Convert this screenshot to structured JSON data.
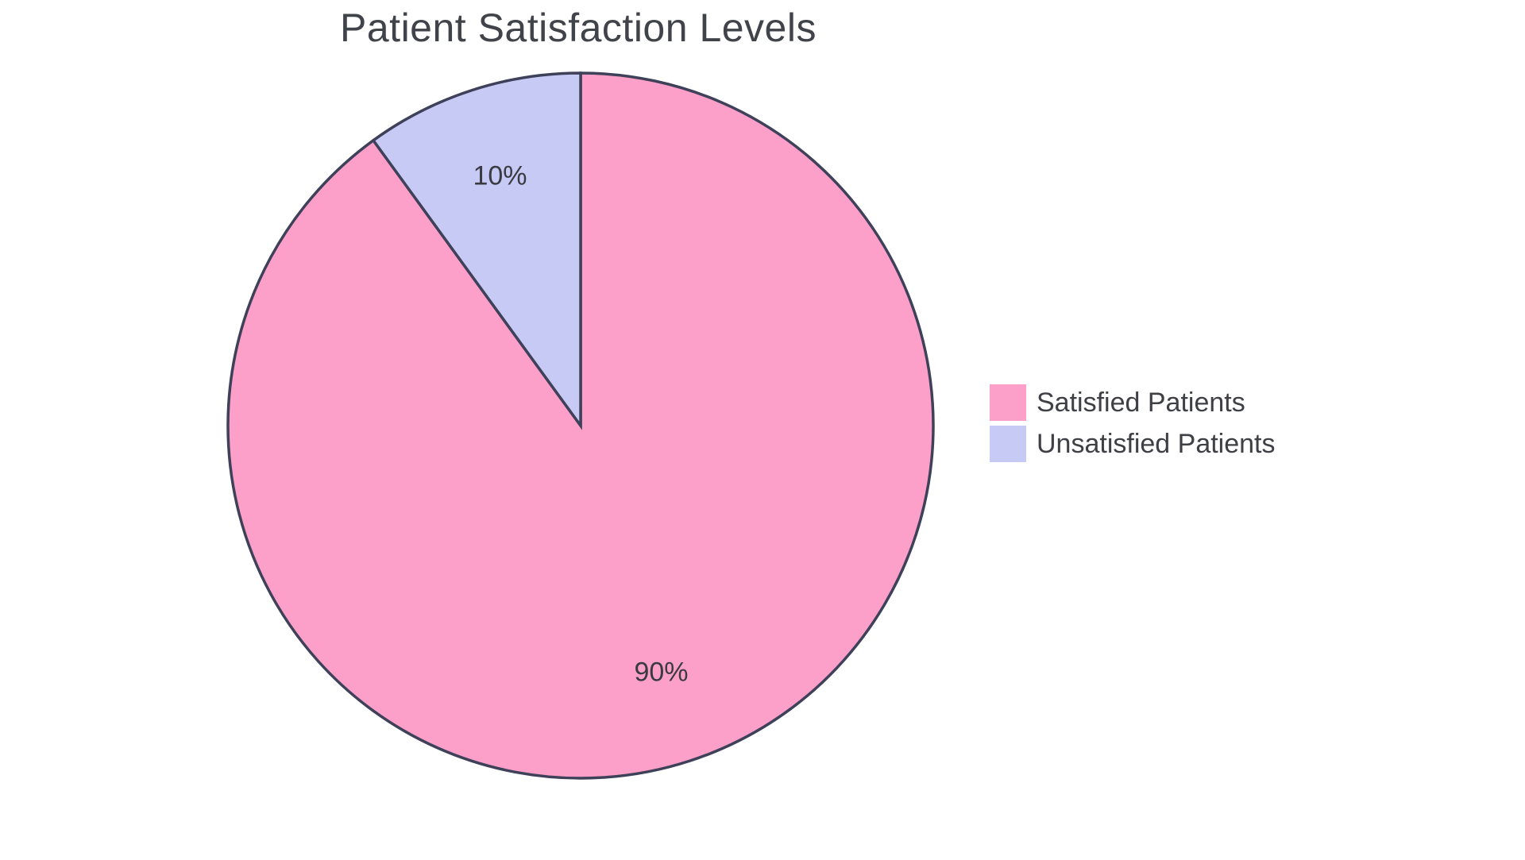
{
  "chart_data": {
    "type": "pie",
    "title": "Patient Satisfaction Levels",
    "categories": [
      "Satisfied Patients",
      "Unsatisfied Patients"
    ],
    "values": [
      90,
      10
    ],
    "slice_labels": [
      "90%",
      "10%"
    ],
    "colors": [
      "#FCA0C9",
      "#C8CAF6"
    ],
    "stroke_color": "#3E4159",
    "stroke_width": 3.5,
    "text_color": "#3F4045",
    "background_color": "#FFFFFF",
    "legend_position": "right",
    "start_angle_deg": 0,
    "direction": "clockwise"
  }
}
